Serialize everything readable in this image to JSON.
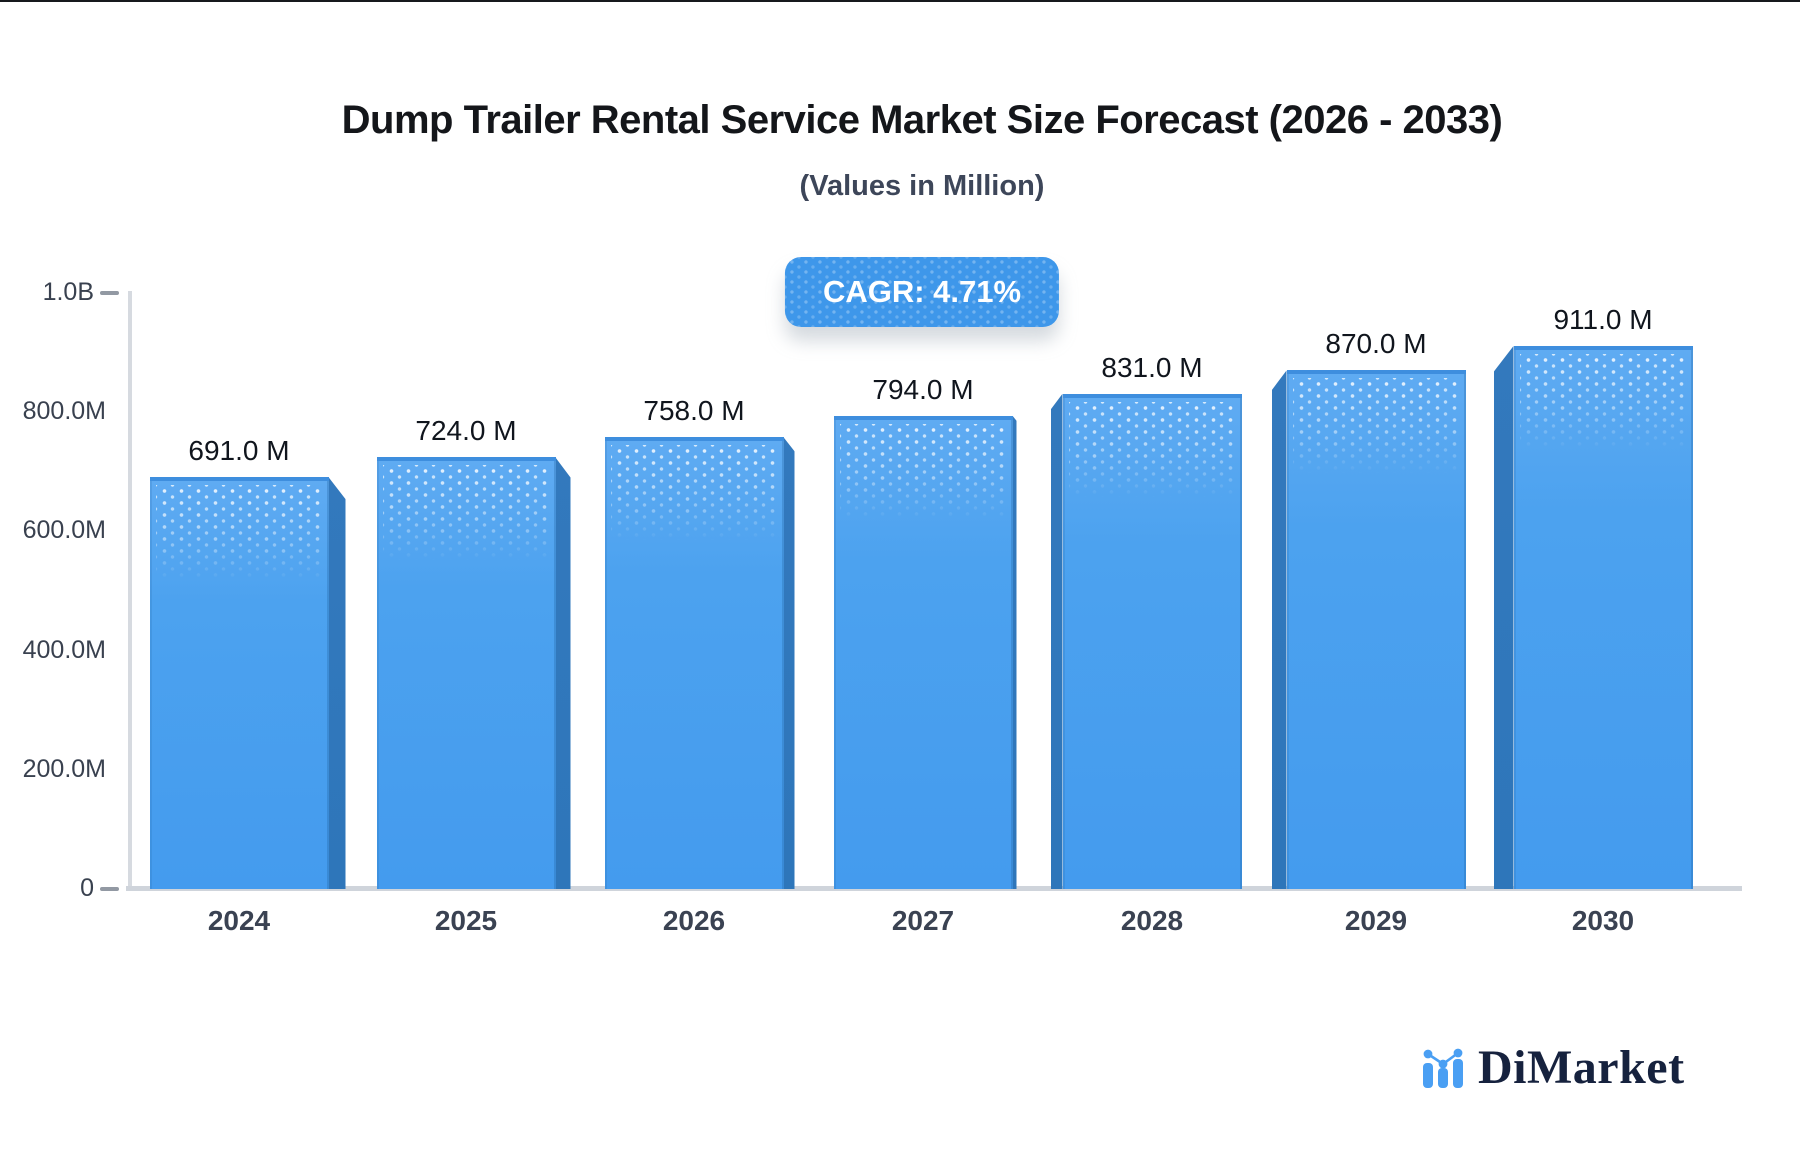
{
  "header": {
    "title": "Dump Trailer Rental Service Market Size Forecast (2026 - 2033)",
    "subtitle": "(Values in Million)"
  },
  "badge": {
    "label": "CAGR: 4.71%"
  },
  "watermark": {
    "name": "DiMarket",
    "icon": "bar-line-chart-icon"
  },
  "colors": {
    "bar_face": "#4aa0ef",
    "bar_face_light": "#5fabf2",
    "bar_side": "#2e76ba",
    "bar_top_edge": "#3e8ede",
    "badge_bg": "#3e97ea",
    "axis_line": "#d2d7dd",
    "tick_dash": "#9299a3",
    "title_text": "#14161a",
    "subtitle_text": "#3d4659",
    "axis_text": "#39414f",
    "logo_text": "#16223e",
    "logo_icon": "#4a9ff3"
  },
  "chart_data": {
    "type": "bar",
    "title": "Dump Trailer Rental Service Market Size Forecast (2026 - 2033)",
    "subtitle": "(Values in Million)",
    "cagr_label": "CAGR: 4.71%",
    "categories": [
      "2024",
      "2025",
      "2026",
      "2027",
      "2028",
      "2029",
      "2030"
    ],
    "values": [
      691.0,
      724.0,
      758.0,
      794.0,
      831.0,
      870.0,
      911.0
    ],
    "value_labels": [
      "691.0 M",
      "724.0 M",
      "758.0 M",
      "794.0 M",
      "831.0 M",
      "870.0 M",
      "911.0 M"
    ],
    "xlabel": "",
    "ylabel": "",
    "ylim": [
      0,
      1000
    ],
    "y_ticks": [
      {
        "label": "0",
        "value": 0,
        "dash": true
      },
      {
        "label": "200.0M",
        "value": 200,
        "dash": false
      },
      {
        "label": "400.0M",
        "value": 400,
        "dash": false
      },
      {
        "label": "600.0M",
        "value": 600,
        "dash": false
      },
      {
        "label": "800.0M",
        "value": 800,
        "dash": false
      },
      {
        "label": "1.0B",
        "value": 1000,
        "dash": true
      }
    ],
    "grid": false,
    "legend": false
  }
}
